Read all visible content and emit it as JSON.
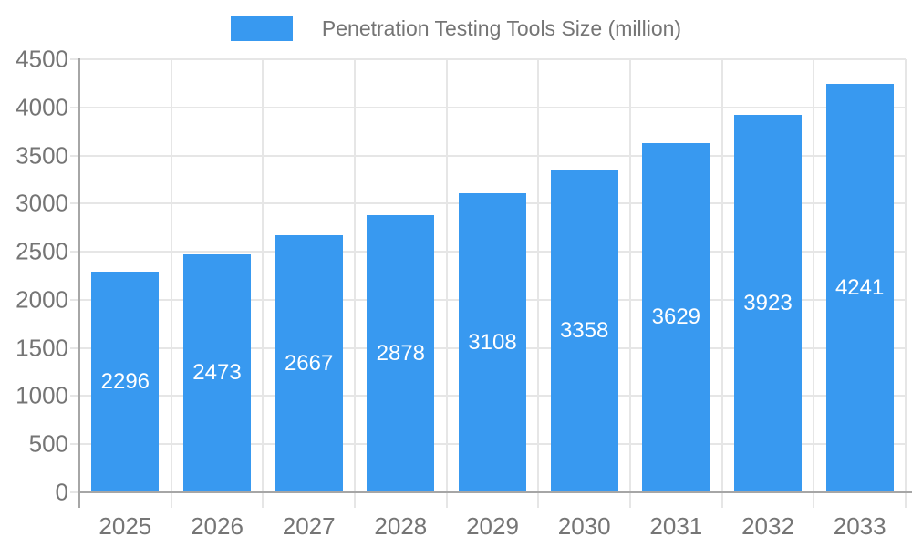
{
  "chart_data": {
    "type": "bar",
    "title": "Penetration Testing Tools Size (million)",
    "categories": [
      "2025",
      "2026",
      "2027",
      "2028",
      "2029",
      "2030",
      "2031",
      "2032",
      "2033"
    ],
    "values": [
      2296,
      2473,
      2667,
      2878,
      3108,
      3358,
      3629,
      3923,
      4241
    ],
    "xlabel": "",
    "ylabel": "",
    "ylim": [
      0,
      4500
    ],
    "ytick_step": 500,
    "ytick_labels": [
      "0",
      "500",
      "1000",
      "1500",
      "2000",
      "2500",
      "3000",
      "3500",
      "4000",
      "4500"
    ],
    "legend_position": "top",
    "grid": true,
    "colors": {
      "bar": "#3899F0",
      "axis_text": "#757575",
      "gridline": "#E6E6E6",
      "axis_line": "#A6A6A6",
      "bar_label": "#FFFFFF",
      "background": "#FFFFFF"
    }
  }
}
